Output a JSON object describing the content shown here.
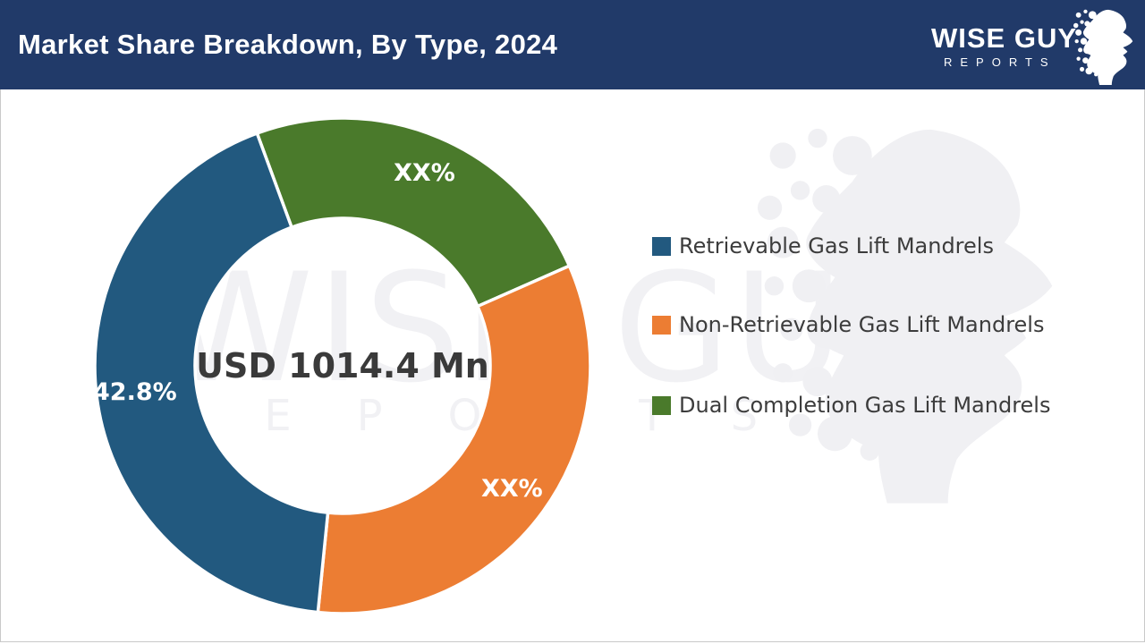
{
  "header": {
    "title": "Market Share Breakdown, By Type, 2024",
    "logo_line1": "WISE GUY",
    "logo_line2": "REPORTS"
  },
  "watermark": {
    "line1": "WISE GUY",
    "line2": "REPORTS"
  },
  "colors": {
    "header_bg": "#213A69",
    "blue": "#22597F",
    "orange": "#EC7D33",
    "green": "#4A7A2B",
    "center_text": "#3A3A3A",
    "legend_text": "#3C3C3C",
    "watermark": "#F1F1F4",
    "frame_border": "#C9C9C9"
  },
  "chart_data": {
    "type": "pie",
    "subtype": "donut",
    "title": "Market Share Breakdown, By Type, 2024",
    "center_label": "USD 1014.4 Mn",
    "start_angle_deg": 110.2,
    "direction": "clockwise",
    "donut_hole_ratio": 0.6,
    "slices": [
      {
        "label": "Dual Completion Gas Lift Mandrels",
        "display_value": "XX%",
        "sweep_pct": 24.0,
        "color": "#4A7A2B"
      },
      {
        "label": "Non-Retrievable Gas Lift Mandrels",
        "display_value": "XX%",
        "sweep_pct": 33.2,
        "color": "#EC7D33"
      },
      {
        "label": "Retrievable Gas Lift Mandrels",
        "display_value": "42.8%",
        "sweep_pct": 42.8,
        "color": "#22597F"
      }
    ],
    "legend": [
      {
        "label": "Retrievable Gas Lift Mandrels",
        "color": "#22597F"
      },
      {
        "label": "Non-Retrievable Gas Lift Mandrels",
        "color": "#EC7D33"
      },
      {
        "label": "Dual Completion Gas Lift Mandrels",
        "color": "#4A7A2B"
      }
    ],
    "legend_position": "right"
  }
}
